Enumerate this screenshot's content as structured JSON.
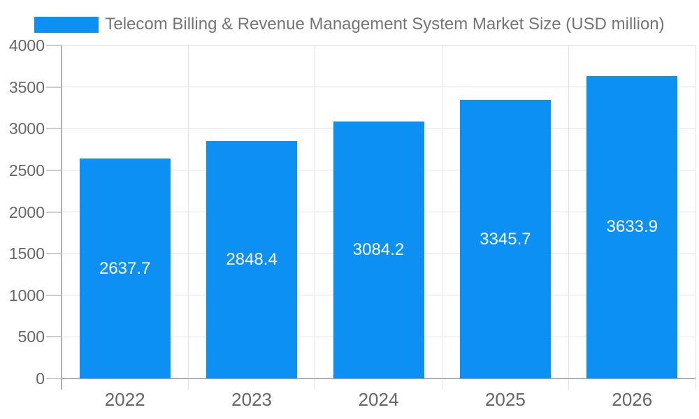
{
  "chart_data": {
    "type": "bar",
    "title": "Telecom Billing & Revenue Management System Market Size (USD million)",
    "categories": [
      "2022",
      "2023",
      "2024",
      "2025",
      "2026"
    ],
    "series": [
      {
        "name": "Telecom Billing & Revenue Management System Market Size (USD million)",
        "values": [
          2637.7,
          2848.4,
          3084.2,
          3345.7,
          3633.9
        ]
      }
    ],
    "value_labels": [
      "2637.7",
      "2848.4",
      "3084.2",
      "3345.7",
      "3633.9"
    ],
    "xlabel": "",
    "ylabel": "",
    "ylim": [
      0,
      4000
    ],
    "yticks": [
      0,
      500,
      1000,
      1500,
      2000,
      2500,
      3000,
      3500,
      4000
    ],
    "ytick_labels": [
      "0",
      "500",
      "1000",
      "1500",
      "2000",
      "2500",
      "3000",
      "3500",
      "4000"
    ],
    "grid": "on",
    "legend_position": "top",
    "colors": {
      "bar": "#0d90f3",
      "grid": "#e3e3e3",
      "axis": "#b0b0b0",
      "tick": "#cccccc",
      "axis_label": "#666666",
      "title": "#757575",
      "value_label": "#ffffff",
      "background": "#ffffff"
    }
  }
}
